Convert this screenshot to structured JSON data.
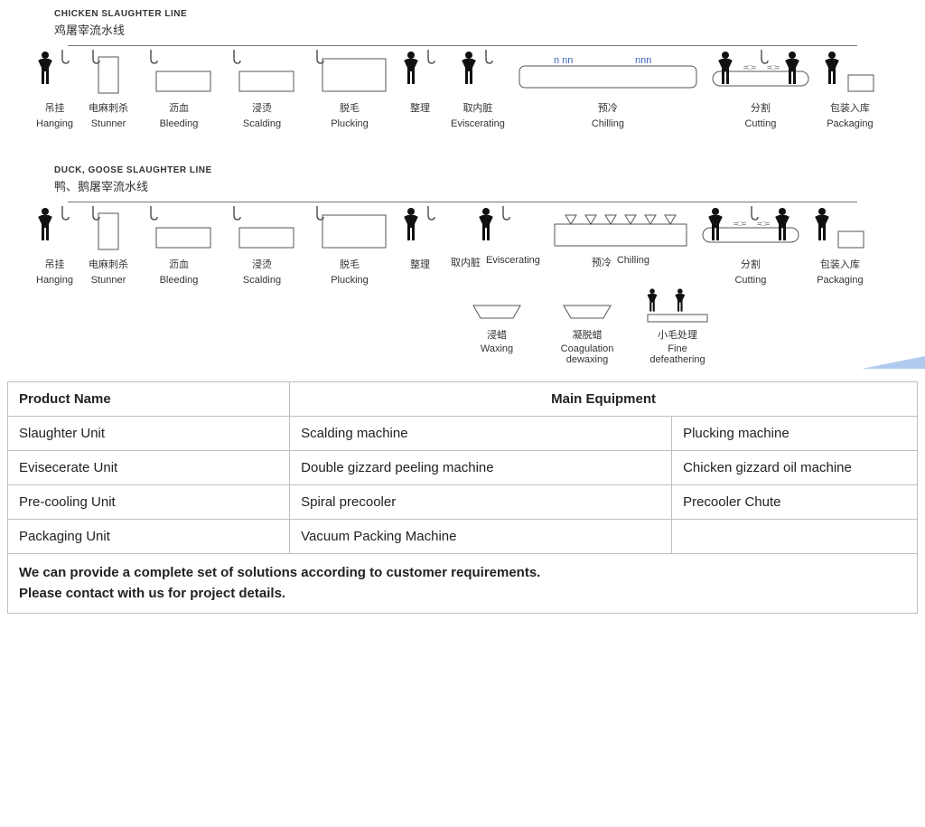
{
  "chicken": {
    "title_en": "CHICKEN SLAUGHTER LINE",
    "title_zh": "鸡屠宰流水线",
    "stages": [
      {
        "zh": "吊挂",
        "en": "Hanging",
        "icon": "worker"
      },
      {
        "zh": "电麻刺杀",
        "en": "Stunner",
        "icon": "stunner"
      },
      {
        "zh": "沥血",
        "en": "Bleeding",
        "icon": "tank"
      },
      {
        "zh": "浸烫",
        "en": "Scalding",
        "icon": "tank"
      },
      {
        "zh": "脱毛",
        "en": "Plucking",
        "icon": "machine"
      },
      {
        "zh": "整理",
        "en": "",
        "icon": "worker"
      },
      {
        "zh": "取内脏",
        "en": "Eviscerating",
        "icon": "worker"
      },
      {
        "zh": "预冷",
        "en": "Chilling",
        "icon": "chiller"
      },
      {
        "zh": "分割",
        "en": "Cutting",
        "icon": "cutting"
      },
      {
        "zh": "包装入库",
        "en": "Packaging",
        "icon": "pack"
      }
    ]
  },
  "duck": {
    "title_en": "DUCK, GOOSE SLAUGHTER LINE",
    "title_zh": "鸭、鹅屠宰流水线",
    "stages": [
      {
        "zh": "吊挂",
        "en": "Hanging",
        "icon": "worker"
      },
      {
        "zh": "电麻刺杀",
        "en": "Stunner",
        "icon": "stunner"
      },
      {
        "zh": "沥血",
        "en": "Bleeding",
        "icon": "tank"
      },
      {
        "zh": "浸烫",
        "en": "Scalding",
        "icon": "tank"
      },
      {
        "zh": "脱毛",
        "en": "Plucking",
        "icon": "machine"
      },
      {
        "zh": "整理",
        "en": "",
        "icon": "worker"
      },
      {
        "zh": "取内脏",
        "en": "Eviscerating",
        "icon": "worker",
        "side": true
      },
      {
        "zh": "预冷",
        "en": "Chilling",
        "icon": "chiller2",
        "side": true
      },
      {
        "zh": "分割",
        "en": "Cutting",
        "icon": "cutting"
      },
      {
        "zh": "包装入库",
        "en": "Packaging",
        "icon": "pack"
      }
    ],
    "extra": [
      {
        "zh": "浸蜡",
        "en": "Waxing",
        "icon": "tray"
      },
      {
        "zh": "凝脱蜡",
        "en": "Coagulation dewaxing",
        "icon": "tray"
      },
      {
        "zh": "小毛处理",
        "en": "Fine defeathering",
        "icon": "twoworkers"
      }
    ]
  },
  "table": {
    "cols": [
      "Product Name",
      "Main Equipment"
    ],
    "rows": [
      [
        "Slaughter Unit",
        "Scalding machine",
        "Plucking machine"
      ],
      [
        "Evisecerate Unit",
        "Double gizzard peeling machine",
        "Chicken gizzard oil machine"
      ],
      [
        "Pre-cooling Unit",
        "Spiral precooler",
        "Precooler Chute"
      ],
      [
        "Packaging Unit",
        "Vacuum Packing Machine",
        ""
      ]
    ],
    "footer1": "We can provide a complete set of solutions according to customer requirements.",
    "footer2": "Please contact with us for project details."
  },
  "colors": {
    "line": "#777777",
    "fig": "#111111",
    "accent": "#3a68b8"
  }
}
